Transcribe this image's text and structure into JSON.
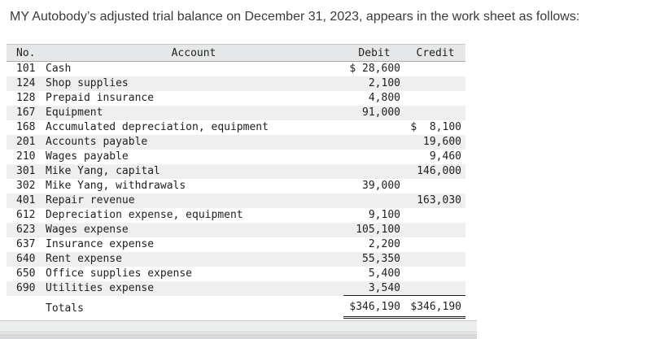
{
  "title": "MY Autobody’s adjusted trial balance on December 31, 2023, appears in the work sheet as follows:",
  "table": {
    "headers": {
      "no": "No.",
      "account": "Account",
      "debit": "Debit",
      "credit": "Credit"
    },
    "rows": [
      {
        "no": "101",
        "account": "Cash",
        "debit": "$ 28,600",
        "credit": ""
      },
      {
        "no": "124",
        "account": "Shop supplies",
        "debit": "2,100",
        "credit": ""
      },
      {
        "no": "128",
        "account": "Prepaid insurance",
        "debit": "4,800",
        "credit": ""
      },
      {
        "no": "167",
        "account": "Equipment",
        "debit": "91,000",
        "credit": ""
      },
      {
        "no": "168",
        "account": "Accumulated depreciation, equipment",
        "debit": "",
        "credit": "$  8,100"
      },
      {
        "no": "201",
        "account": "Accounts payable",
        "debit": "",
        "credit": "19,600"
      },
      {
        "no": "210",
        "account": "Wages payable",
        "debit": "",
        "credit": "9,460"
      },
      {
        "no": "301",
        "account": "Mike Yang, capital",
        "debit": "",
        "credit": "146,000"
      },
      {
        "no": "302",
        "account": "Mike Yang, withdrawals",
        "debit": "39,000",
        "credit": ""
      },
      {
        "no": "401",
        "account": "Repair revenue",
        "debit": "",
        "credit": "163,030"
      },
      {
        "no": "612",
        "account": "Depreciation expense, equipment",
        "debit": "9,100",
        "credit": ""
      },
      {
        "no": "623",
        "account": "Wages expense",
        "debit": "105,100",
        "credit": ""
      },
      {
        "no": "637",
        "account": "Insurance expense",
        "debit": "2,200",
        "credit": ""
      },
      {
        "no": "640",
        "account": "Rent expense",
        "debit": "55,350",
        "credit": ""
      },
      {
        "no": "650",
        "account": "Office supplies expense",
        "debit": "5,400",
        "credit": ""
      },
      {
        "no": "690",
        "account": "Utilities expense",
        "debit": "3,540",
        "credit": ""
      }
    ],
    "totals": {
      "label": "Totals",
      "debit": "$346,190",
      "credit": "$346,190"
    }
  }
}
